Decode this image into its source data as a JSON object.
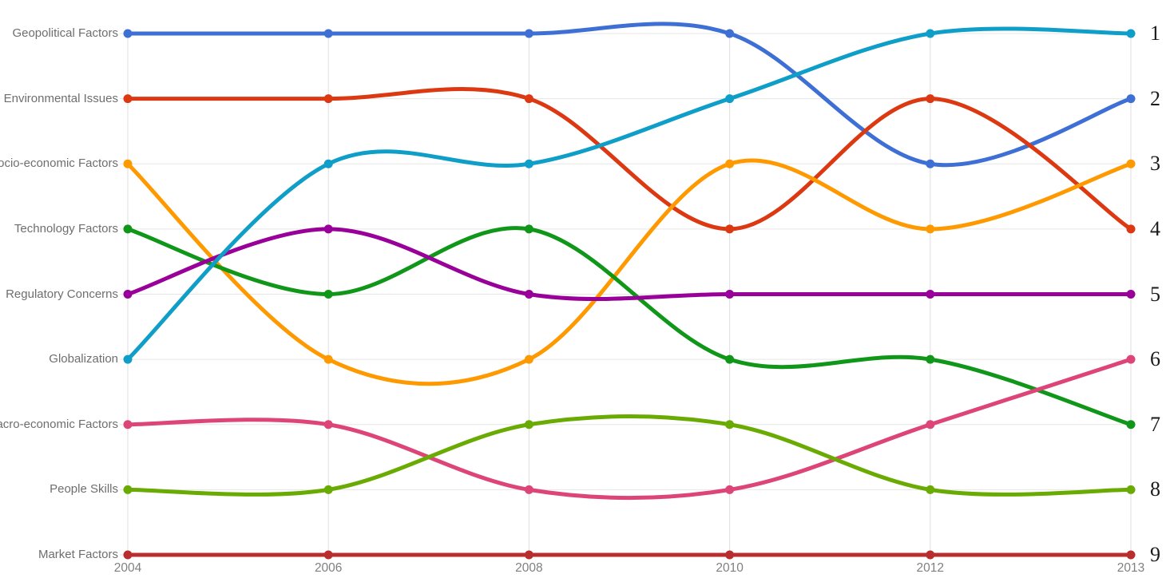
{
  "chart_data": {
    "type": "line",
    "variant": "bump-rank-chart",
    "title": "",
    "x_categories": [
      "2004",
      "2006",
      "2008",
      "2010",
      "2012",
      "2013"
    ],
    "rank_axis": {
      "min": 1,
      "max": 9,
      "inverted": true,
      "right_labels": [
        "1",
        "2",
        "3",
        "4",
        "5",
        "6",
        "7",
        "8",
        "9"
      ]
    },
    "grid": {
      "horizontal": true,
      "vertical": true
    },
    "legend_position": "left-inline-labels",
    "series": [
      {
        "name": "Geopolitical Factors",
        "color": "#3E6FD5",
        "ranks": [
          1,
          1,
          1,
          1,
          3,
          2
        ]
      },
      {
        "name": "Environmental Issues",
        "color": "#DC3912",
        "ranks": [
          2,
          2,
          2,
          4,
          2,
          4
        ]
      },
      {
        "name": "Socio-economic Factors",
        "color": "#FF9900",
        "ranks": [
          3,
          6,
          6,
          3,
          4,
          3
        ]
      },
      {
        "name": "Technology Factors",
        "color": "#109618",
        "ranks": [
          4,
          5,
          4,
          6,
          6,
          7
        ]
      },
      {
        "name": "Regulatory Concerns",
        "color": "#990099",
        "ranks": [
          5,
          4,
          5,
          5,
          5,
          5
        ]
      },
      {
        "name": "Globalization",
        "color": "#0E9EC8",
        "ranks": [
          6,
          3,
          3,
          2,
          1,
          1
        ]
      },
      {
        "name": "Macro-economic Factors",
        "color": "#DD4477",
        "ranks": [
          7,
          7,
          8,
          8,
          7,
          6
        ]
      },
      {
        "name": "People Skills",
        "color": "#69AB02",
        "ranks": [
          8,
          8,
          7,
          7,
          8,
          8
        ]
      },
      {
        "name": "Market Factors",
        "color": "#B82E2E",
        "ranks": [
          9,
          9,
          9,
          9,
          9,
          9
        ]
      }
    ]
  },
  "style": {
    "background": "#ffffff",
    "grid_color_horizontal": "#e6e6e6",
    "grid_color_vertical": "#dedede",
    "series_label_color": "#6e6e6e",
    "x_label_color": "#808080",
    "rank_label_color": "#1b1b1b"
  }
}
